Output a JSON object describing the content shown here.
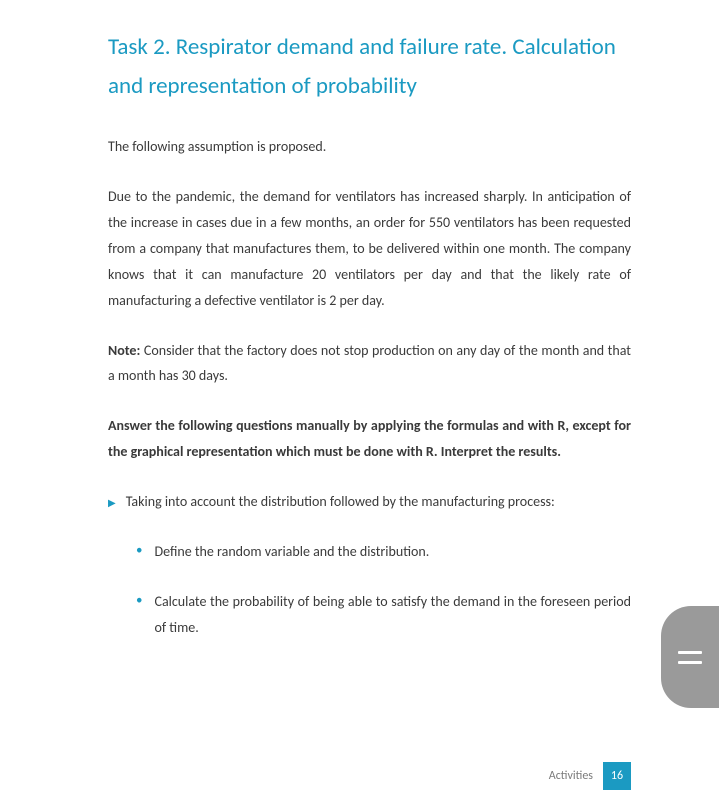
{
  "title": "Task 2. Respirator demand and failure rate. Calculation and representation of probability",
  "intro": "The following assumption is proposed.",
  "body1": "Due to the pandemic, the demand for ventilators has increased sharply. In anticipation of the increase in cases due in a few months, an order for 550 ventilators has been requested from a company that manufactures them, to be delivered within one month. The company knows that it can manufacture 20 ventilators per day and that the likely rate of manufacturing a defective ventilator is 2 per day.",
  "note_label": "Note:",
  "note_text": " Consider that the factory does not stop production on any day of the month and that a month has 30 days.",
  "instruction": "Answer the following questions manually by applying the formulas and with R, except for the graphical representation which must be done with R. Interpret the results.",
  "bullet1": "Taking into account the distribution followed by the manufacturing process:",
  "bullet2a": "Define the random variable and the distribution.",
  "bullet2b": "Calculate the probability of being able to satisfy the demand in the foreseen period of time.",
  "footer_label": "Activities",
  "footer_page": "16",
  "colors": {
    "accent": "#1b9ac2",
    "text": "#3a3a3a",
    "footer_text": "#7a7a7a",
    "handle": "#9a9a9a",
    "white": "#ffffff"
  }
}
